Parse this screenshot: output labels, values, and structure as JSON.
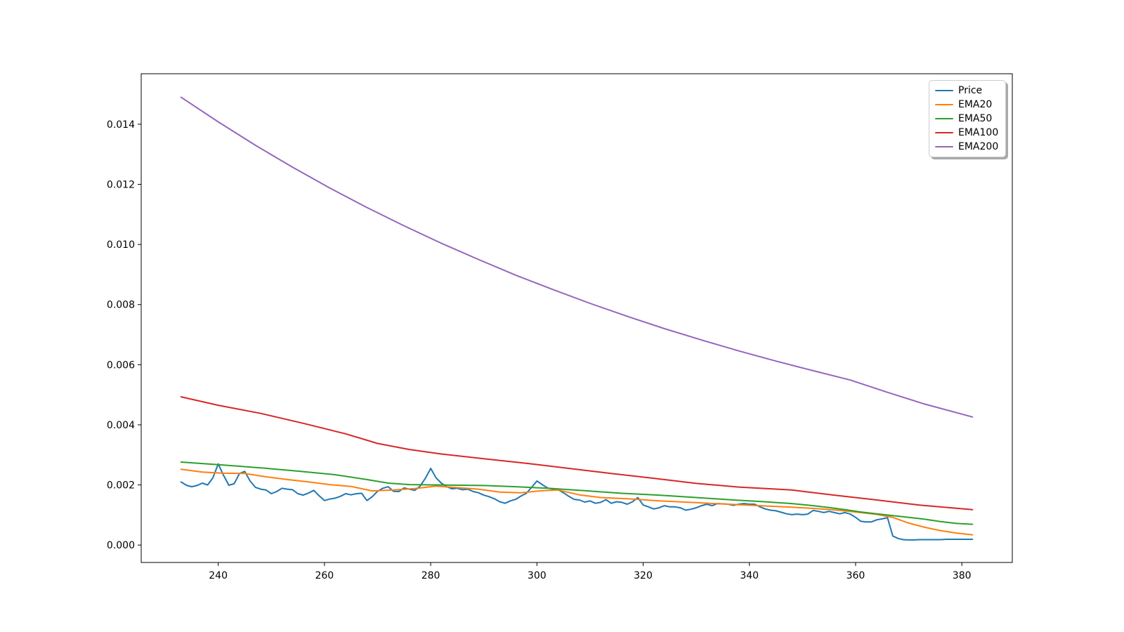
{
  "figure": {
    "background": "#ffffff",
    "spine_color": "#000000",
    "tick_color": "#000000"
  },
  "chart_data": {
    "type": "line",
    "title": "",
    "xlabel": "",
    "ylabel": "",
    "grid": false,
    "xlim": [
      225.5,
      389.5
    ],
    "ylim": [
      -0.00058,
      0.01568
    ],
    "x_ticks": [
      240,
      260,
      280,
      300,
      320,
      340,
      360,
      380
    ],
    "x_tick_labels": [
      "240",
      "260",
      "280",
      "300",
      "320",
      "340",
      "360",
      "380"
    ],
    "y_ticks": [
      0.0,
      0.002,
      0.004,
      0.006,
      0.008,
      0.01,
      0.012,
      0.014
    ],
    "y_tick_labels": [
      "0.000",
      "0.002",
      "0.004",
      "0.006",
      "0.008",
      "0.010",
      "0.012",
      "0.014"
    ],
    "legend": {
      "position": "upper right",
      "shadow": true,
      "border_color": "#cccccc"
    },
    "series": [
      {
        "name": "Price",
        "color": "#1f77b4",
        "x": [
          233,
          234,
          235,
          236,
          237,
          238,
          239,
          240,
          241,
          242,
          243,
          244,
          245,
          246,
          247,
          248,
          249,
          250,
          251,
          252,
          253,
          254,
          255,
          256,
          257,
          258,
          259,
          260,
          261,
          262,
          263,
          264,
          265,
          266,
          267,
          268,
          269,
          270,
          271,
          272,
          273,
          274,
          275,
          276,
          277,
          278,
          279,
          280,
          281,
          282,
          283,
          284,
          285,
          286,
          287,
          288,
          289,
          290,
          291,
          292,
          293,
          294,
          295,
          296,
          297,
          298,
          299,
          300,
          301,
          302,
          303,
          304,
          305,
          306,
          307,
          308,
          309,
          310,
          311,
          312,
          313,
          314,
          315,
          316,
          317,
          318,
          319,
          320,
          321,
          322,
          323,
          324,
          325,
          326,
          327,
          328,
          329,
          330,
          331,
          332,
          333,
          334,
          335,
          336,
          337,
          338,
          339,
          340,
          341,
          342,
          343,
          344,
          345,
          346,
          347,
          348,
          349,
          350,
          351,
          352,
          353,
          354,
          355,
          356,
          357,
          358,
          359,
          360,
          361,
          362,
          363,
          364,
          365,
          366,
          367,
          368,
          369,
          370,
          371,
          372,
          373,
          374,
          375,
          376,
          377,
          378,
          379,
          380,
          381,
          382
        ],
        "values": [
          0.0021,
          0.00199,
          0.00194,
          0.00198,
          0.00206,
          0.002,
          0.00224,
          0.0027,
          0.00232,
          0.00199,
          0.00204,
          0.00238,
          0.00245,
          0.00213,
          0.00192,
          0.00186,
          0.00183,
          0.00171,
          0.00178,
          0.00189,
          0.00186,
          0.00184,
          0.00171,
          0.00166,
          0.00173,
          0.00182,
          0.00164,
          0.00148,
          0.00153,
          0.00156,
          0.00162,
          0.00171,
          0.00167,
          0.00171,
          0.00172,
          0.00148,
          0.00161,
          0.00179,
          0.00189,
          0.00194,
          0.00179,
          0.00178,
          0.0019,
          0.00186,
          0.00182,
          0.00196,
          0.00222,
          0.00255,
          0.00224,
          0.00206,
          0.00194,
          0.00187,
          0.00189,
          0.00184,
          0.00186,
          0.00178,
          0.00174,
          0.00166,
          0.00161,
          0.00154,
          0.00144,
          0.00139,
          0.00147,
          0.00152,
          0.00163,
          0.00172,
          0.00192,
          0.00213,
          0.00201,
          0.0019,
          0.00186,
          0.00184,
          0.00174,
          0.00162,
          0.00152,
          0.0015,
          0.00143,
          0.00147,
          0.00139,
          0.00142,
          0.00151,
          0.00139,
          0.00144,
          0.00142,
          0.00136,
          0.00144,
          0.00158,
          0.00133,
          0.00127,
          0.0012,
          0.00124,
          0.00131,
          0.00127,
          0.00127,
          0.00124,
          0.00116,
          0.00119,
          0.00124,
          0.00131,
          0.00136,
          0.00131,
          0.00138,
          0.00137,
          0.00136,
          0.00132,
          0.00136,
          0.00138,
          0.00136,
          0.00136,
          0.00127,
          0.0012,
          0.00116,
          0.00114,
          0.00109,
          0.00104,
          0.00101,
          0.00103,
          0.00101,
          0.00103,
          0.00115,
          0.00112,
          0.00108,
          0.00112,
          0.00108,
          0.00104,
          0.00108,
          0.00103,
          0.00092,
          0.00079,
          0.00077,
          0.00077,
          0.00084,
          0.00087,
          0.00091,
          0.0003,
          0.00022,
          0.00018,
          0.00017,
          0.00017,
          0.00018,
          0.00018,
          0.00018,
          0.00018,
          0.00018,
          0.00019,
          0.00019,
          0.00019,
          0.00019,
          0.00019,
          0.00019
        ]
      },
      {
        "name": "EMA20",
        "color": "#ff7f0e",
        "x": [
          233,
          237,
          241,
          245,
          249,
          253,
          257,
          261,
          265,
          269,
          273,
          277,
          281,
          285,
          289,
          293,
          297,
          301,
          304,
          308,
          312,
          317,
          323,
          330,
          337,
          343,
          348,
          352,
          356,
          360,
          364,
          367,
          370,
          373,
          376,
          379,
          382
        ],
        "values": [
          0.00252,
          0.00243,
          0.00239,
          0.00238,
          0.00227,
          0.00218,
          0.0021,
          0.00201,
          0.00195,
          0.0018,
          0.00183,
          0.00188,
          0.00196,
          0.00191,
          0.00186,
          0.00176,
          0.00174,
          0.00181,
          0.00183,
          0.00167,
          0.00158,
          0.00154,
          0.00147,
          0.00141,
          0.00135,
          0.0013,
          0.00126,
          0.00122,
          0.00117,
          0.0011,
          0.00102,
          0.00092,
          0.00073,
          0.00059,
          0.00048,
          0.0004,
          0.00034
        ]
      },
      {
        "name": "EMA50",
        "color": "#2ca02c",
        "x": [
          233,
          241,
          248,
          255,
          262,
          268,
          272,
          276,
          282,
          290,
          296,
          302,
          309,
          316,
          323,
          330,
          337,
          342,
          348,
          352,
          355,
          358,
          361,
          364,
          367,
          370,
          373,
          376,
          379,
          382
        ],
        "values": [
          0.00276,
          0.00266,
          0.00257,
          0.00246,
          0.00234,
          0.00218,
          0.00206,
          0.00201,
          0.002,
          0.00198,
          0.00194,
          0.00189,
          0.00181,
          0.00172,
          0.00166,
          0.00158,
          0.0015,
          0.00145,
          0.00138,
          0.00131,
          0.00125,
          0.00118,
          0.0011,
          0.00104,
          0.00098,
          0.00092,
          0.00086,
          0.00078,
          0.00072,
          0.00069
        ]
      },
      {
        "name": "EMA100",
        "color": "#d62728",
        "x": [
          233,
          240,
          248,
          256,
          264,
          270,
          276,
          282,
          290,
          298,
          306,
          314,
          322,
          330,
          338,
          348,
          356,
          364,
          372,
          382
        ],
        "values": [
          0.00493,
          0.00465,
          0.00438,
          0.00405,
          0.0037,
          0.00338,
          0.00318,
          0.00303,
          0.00287,
          0.00272,
          0.00255,
          0.00238,
          0.00222,
          0.00205,
          0.00193,
          0.00183,
          0.00166,
          0.0015,
          0.00133,
          0.00118
        ]
      },
      {
        "name": "EMA200",
        "color": "#9467bd",
        "x": [
          233,
          240,
          247,
          254,
          261,
          268,
          275,
          282,
          289,
          296,
          303,
          310,
          317,
          324,
          331,
          338,
          345,
          352,
          359,
          366,
          373,
          382
        ],
        "values": [
          0.0149,
          0.01408,
          0.0133,
          0.01257,
          0.01188,
          0.01123,
          0.01062,
          0.01004,
          0.0095,
          0.00898,
          0.0085,
          0.00804,
          0.00761,
          0.0072,
          0.00682,
          0.00646,
          0.00612,
          0.0058,
          0.00549,
          0.00508,
          0.00469,
          0.00426
        ]
      }
    ]
  }
}
